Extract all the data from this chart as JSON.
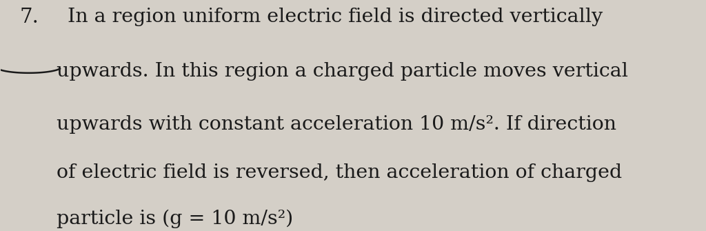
{
  "background_color": "#d4cfc7",
  "text_color": "#1a1a1a",
  "number": "7.",
  "line1": "In a region uniform electric field is directed vertically",
  "line2": "upwards. In this region a charged particle moves vertical",
  "line3": "upwards with constant acceleration 10 m/s². If direction",
  "line4": "of electric field is reversed, then acceleration of charged",
  "line5": "particle is (g = 10 m/s²)",
  "font_size": 20.5,
  "number_font_size": 21,
  "fig_width": 10.24,
  "fig_height": 3.35
}
